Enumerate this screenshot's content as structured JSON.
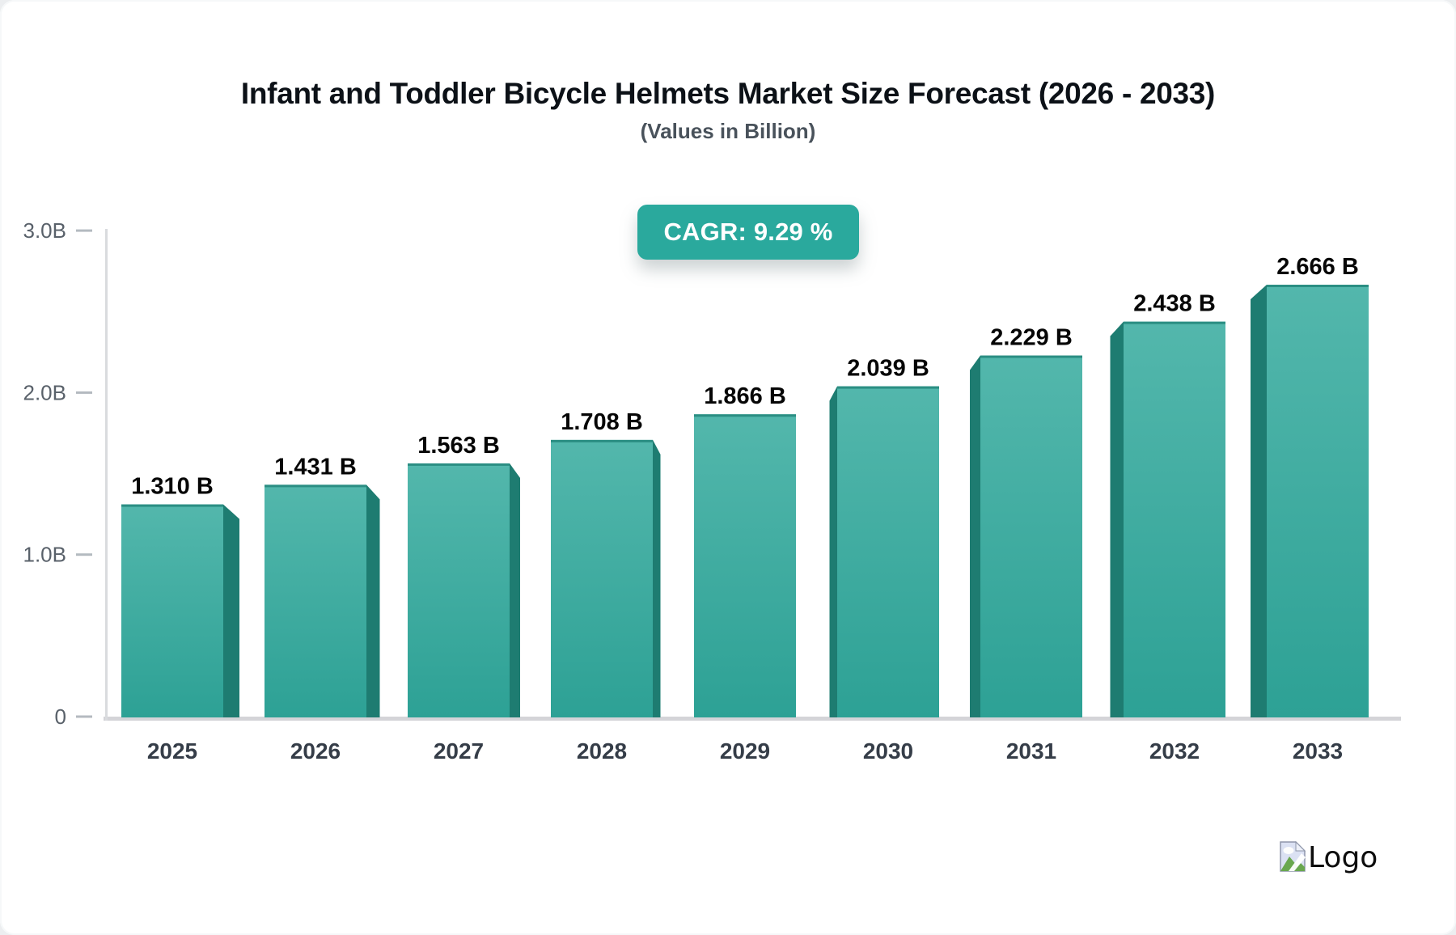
{
  "header": {
    "title": "Infant and Toddler Bicycle Helmets Market Size Forecast (2026 - 2033)",
    "subtitle": "(Values in Billion)"
  },
  "badge": {
    "label": "CAGR: 9.29 %"
  },
  "logo": {
    "alt_text": "Logo",
    "icon": "broken-image-icon"
  },
  "chart_data": {
    "type": "bar",
    "title": "Infant and Toddler Bicycle Helmets Market Size Forecast (2026 - 2033)",
    "subtitle": "(Values in Billion)",
    "cagr_percent": 9.29,
    "unit": "Billion",
    "categories": [
      "2025",
      "2026",
      "2027",
      "2028",
      "2029",
      "2030",
      "2031",
      "2032",
      "2033"
    ],
    "values": [
      1.31,
      1.431,
      1.563,
      1.708,
      1.866,
      2.039,
      2.229,
      2.438,
      2.666
    ],
    "value_labels": [
      "1.310 B",
      "1.431 B",
      "1.563 B",
      "1.708 B",
      "1.866 B",
      "2.039 B",
      "2.229 B",
      "2.438 B",
      "2.666 B"
    ],
    "ylim": [
      0,
      3
    ],
    "yticks": [
      {
        "value": 0,
        "label": "0"
      },
      {
        "value": 1,
        "label": "1.0B"
      },
      {
        "value": 2,
        "label": "2.0B"
      },
      {
        "value": 3,
        "label": "3.0B"
      }
    ],
    "grid": false,
    "legend": false,
    "colors": {
      "bar_face_top": "#53b7ac",
      "bar_face_bottom": "#2da195",
      "bar_side": "#1e7c71",
      "bar_top_edge": "#2b8e83",
      "badge_bg": "#2aa99d",
      "axis_line": "#d9dbde",
      "baseline": "#d4d4d8",
      "tick": "#b4bac0",
      "ytick_text": "#59616a",
      "xtick_text": "#353d48",
      "value_text": "#060606"
    }
  }
}
